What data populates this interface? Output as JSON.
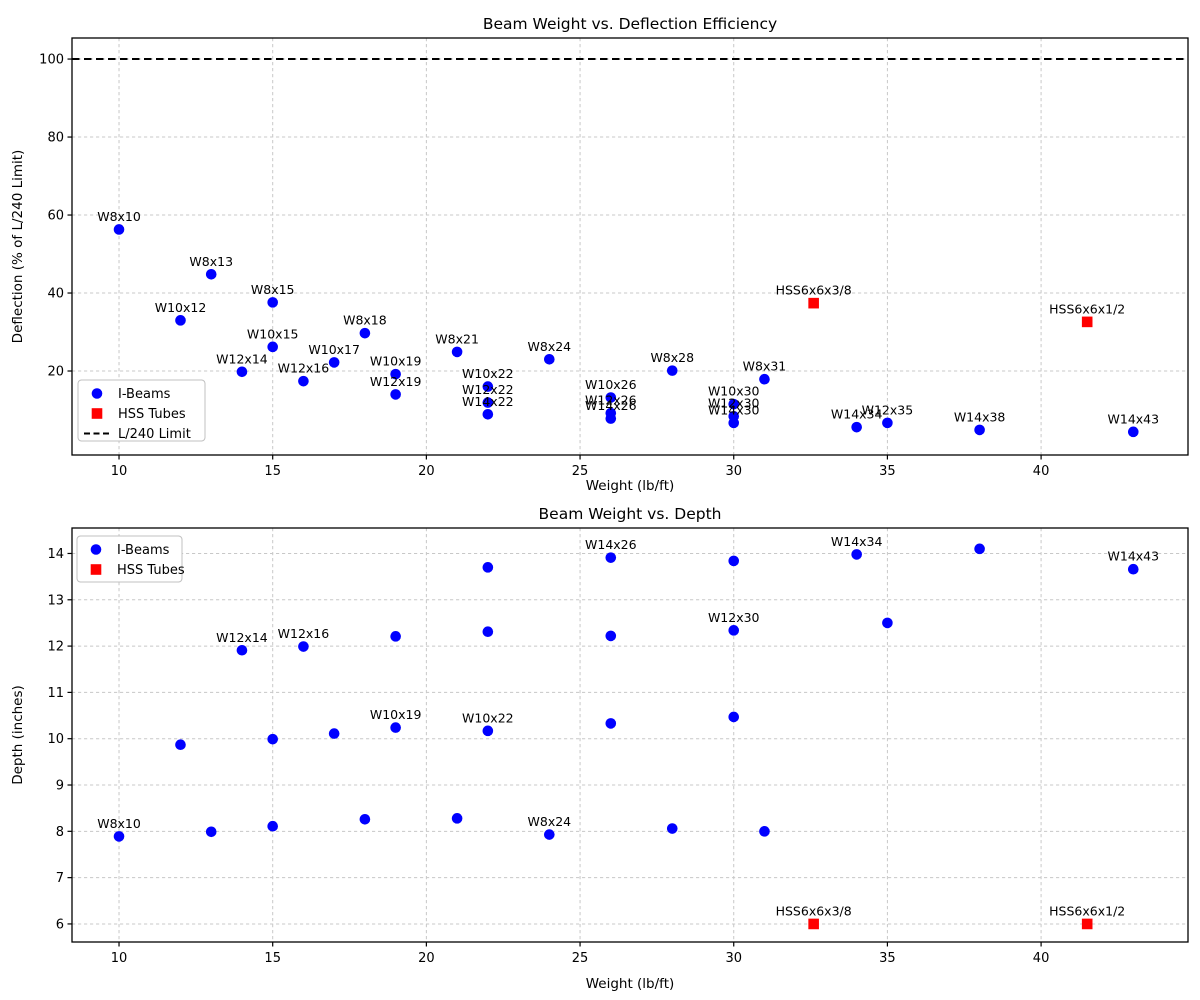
{
  "figure": {
    "background": "#ffffff",
    "colors": {
      "ibeam": "#0000ff",
      "hss": "#ff0000",
      "limit_line": "#000000",
      "grid": "#c8c8c8",
      "spine": "#000000",
      "legend_border": "#c0c0c0",
      "legend_fill": "#ffffff"
    }
  },
  "chart_data": [
    {
      "type": "scatter",
      "title": "Beam Weight vs. Deflection Efficiency",
      "xlabel": "Weight (lb/ft)",
      "ylabel": "Deflection (% of L/240 Limit)",
      "xlim": [
        8.47,
        44.78
      ],
      "ylim": [
        -1.54,
        105.4
      ],
      "xticks": [
        10,
        15,
        20,
        25,
        30,
        35,
        40
      ],
      "yticks": [
        20,
        40,
        60,
        80,
        100
      ],
      "grid": true,
      "reference_line": {
        "y": 100,
        "label": "L/240 Limit",
        "style": "dashed",
        "color": "#000000"
      },
      "legend": {
        "position": "lower-left",
        "entries": [
          {
            "label": "I-Beams",
            "marker": "circle",
            "color": "#0000ff"
          },
          {
            "label": "HSS Tubes",
            "marker": "square",
            "color": "#ff0000"
          },
          {
            "label": "L/240 Limit",
            "marker": "dashed-line",
            "color": "#000000"
          }
        ]
      },
      "series": [
        {
          "name": "I-Beams",
          "marker": "circle",
          "color": "#0000ff",
          "points": [
            {
              "label": "W8x10",
              "x": 10,
              "y": 56.3,
              "annotated": true
            },
            {
              "label": "W10x12",
              "x": 12,
              "y": 33.0,
              "annotated": true
            },
            {
              "label": "W8x13",
              "x": 13,
              "y": 44.8,
              "annotated": true
            },
            {
              "label": "W12x14",
              "x": 14,
              "y": 19.8,
              "annotated": true
            },
            {
              "label": "W8x15",
              "x": 15,
              "y": 37.6,
              "annotated": true
            },
            {
              "label": "W10x15",
              "x": 15,
              "y": 26.2,
              "annotated": true
            },
            {
              "label": "W12x16",
              "x": 16,
              "y": 17.4,
              "annotated": true
            },
            {
              "label": "W10x17",
              "x": 17,
              "y": 22.2,
              "annotated": true
            },
            {
              "label": "W8x18",
              "x": 18,
              "y": 29.7,
              "annotated": true
            },
            {
              "label": "W10x19",
              "x": 19,
              "y": 19.2,
              "annotated": true
            },
            {
              "label": "W12x19",
              "x": 19,
              "y": 14.0,
              "annotated": true
            },
            {
              "label": "W8x21",
              "x": 21,
              "y": 24.9,
              "annotated": true
            },
            {
              "label": "W10x22",
              "x": 22,
              "y": 16.0,
              "annotated": true
            },
            {
              "label": "W12x22",
              "x": 22,
              "y": 11.9,
              "annotated": true
            },
            {
              "label": "W14x22",
              "x": 22,
              "y": 8.9,
              "annotated": true
            },
            {
              "label": "W8x24",
              "x": 24,
              "y": 23.0,
              "annotated": true
            },
            {
              "label": "W10x26",
              "x": 26,
              "y": 13.2,
              "annotated": true
            },
            {
              "label": "W12x26",
              "x": 26,
              "y": 9.2,
              "annotated": true
            },
            {
              "label": "W14x26",
              "x": 26,
              "y": 7.8,
              "annotated": true
            },
            {
              "label": "W8x28",
              "x": 28,
              "y": 20.1,
              "annotated": true
            },
            {
              "label": "W10x30",
              "x": 30,
              "y": 11.5,
              "annotated": true
            },
            {
              "label": "W12x30",
              "x": 30,
              "y": 8.4,
              "annotated": true
            },
            {
              "label": "W14x30",
              "x": 30,
              "y": 6.7,
              "annotated": true
            },
            {
              "label": "W8x31",
              "x": 31,
              "y": 17.9,
              "annotated": true
            },
            {
              "label": "W14x34",
              "x": 34,
              "y": 5.6,
              "annotated": true
            },
            {
              "label": "W12x35",
              "x": 35,
              "y": 6.7,
              "annotated": true
            },
            {
              "label": "W14x38",
              "x": 38,
              "y": 4.9,
              "annotated": true
            },
            {
              "label": "W14x43",
              "x": 43,
              "y": 4.4,
              "annotated": true
            }
          ]
        },
        {
          "name": "HSS Tubes",
          "marker": "square",
          "color": "#ff0000",
          "points": [
            {
              "label": "HSS6x6x3/8",
              "x": 32.6,
              "y": 37.4,
              "annotated": true
            },
            {
              "label": "HSS6x6x1/2",
              "x": 41.5,
              "y": 32.6,
              "annotated": true
            }
          ]
        }
      ]
    },
    {
      "type": "scatter",
      "title": "Beam Weight vs. Depth",
      "xlabel": "Weight (lb/ft)",
      "ylabel": "Depth (inches)",
      "xlim": [
        8.47,
        44.78
      ],
      "ylim": [
        5.61,
        14.55
      ],
      "xticks": [
        10,
        15,
        20,
        25,
        30,
        35,
        40
      ],
      "yticks": [
        6,
        7,
        8,
        9,
        10,
        11,
        12,
        13,
        14
      ],
      "grid": true,
      "legend": {
        "position": "upper-left",
        "entries": [
          {
            "label": "I-Beams",
            "marker": "circle",
            "color": "#0000ff"
          },
          {
            "label": "HSS Tubes",
            "marker": "square",
            "color": "#ff0000"
          }
        ]
      },
      "series": [
        {
          "name": "I-Beams",
          "marker": "circle",
          "color": "#0000ff",
          "points": [
            {
              "label": "W8x10",
              "x": 10,
              "y": 7.89,
              "annotated": true
            },
            {
              "label": "W10x12",
              "x": 12,
              "y": 9.87,
              "annotated": false
            },
            {
              "label": "W8x13",
              "x": 13,
              "y": 7.99,
              "annotated": false
            },
            {
              "label": "W12x14",
              "x": 14,
              "y": 11.91,
              "annotated": true
            },
            {
              "label": "W8x15",
              "x": 15,
              "y": 8.11,
              "annotated": false
            },
            {
              "label": "W10x15",
              "x": 15,
              "y": 9.99,
              "annotated": false
            },
            {
              "label": "W12x16",
              "x": 16,
              "y": 11.99,
              "annotated": true
            },
            {
              "label": "W10x17",
              "x": 17,
              "y": 10.11,
              "annotated": false
            },
            {
              "label": "W8x18",
              "x": 18,
              "y": 8.26,
              "annotated": false
            },
            {
              "label": "W10x19",
              "x": 19,
              "y": 10.24,
              "annotated": true
            },
            {
              "label": "W12x19",
              "x": 19,
              "y": 12.21,
              "annotated": false
            },
            {
              "label": "W8x21",
              "x": 21,
              "y": 8.28,
              "annotated": false
            },
            {
              "label": "W10x22",
              "x": 22,
              "y": 10.17,
              "annotated": true
            },
            {
              "label": "W12x22",
              "x": 22,
              "y": 12.31,
              "annotated": false
            },
            {
              "label": "W14x22",
              "x": 22,
              "y": 13.7,
              "annotated": false
            },
            {
              "label": "W8x24",
              "x": 24,
              "y": 7.93,
              "annotated": true
            },
            {
              "label": "W10x26",
              "x": 26,
              "y": 10.33,
              "annotated": false
            },
            {
              "label": "W12x26",
              "x": 26,
              "y": 12.22,
              "annotated": false
            },
            {
              "label": "W14x26",
              "x": 26,
              "y": 13.91,
              "annotated": true
            },
            {
              "label": "W8x28",
              "x": 28,
              "y": 8.06,
              "annotated": false
            },
            {
              "label": "W10x30",
              "x": 30,
              "y": 10.47,
              "annotated": false
            },
            {
              "label": "W12x30",
              "x": 30,
              "y": 12.34,
              "annotated": true
            },
            {
              "label": "W14x30",
              "x": 30,
              "y": 13.84,
              "annotated": false
            },
            {
              "label": "W8x31",
              "x": 31,
              "y": 8.0,
              "annotated": false
            },
            {
              "label": "W14x34",
              "x": 34,
              "y": 13.98,
              "annotated": true
            },
            {
              "label": "W12x35",
              "x": 35,
              "y": 12.5,
              "annotated": false
            },
            {
              "label": "W14x38",
              "x": 38,
              "y": 14.1,
              "annotated": false
            },
            {
              "label": "W14x43",
              "x": 43,
              "y": 13.66,
              "annotated": true
            }
          ]
        },
        {
          "name": "HSS Tubes",
          "marker": "square",
          "color": "#ff0000",
          "points": [
            {
              "label": "HSS6x6x3/8",
              "x": 32.6,
              "y": 6.0,
              "annotated": true
            },
            {
              "label": "HSS6x6x1/2",
              "x": 41.5,
              "y": 6.0,
              "annotated": true
            }
          ]
        }
      ]
    }
  ]
}
